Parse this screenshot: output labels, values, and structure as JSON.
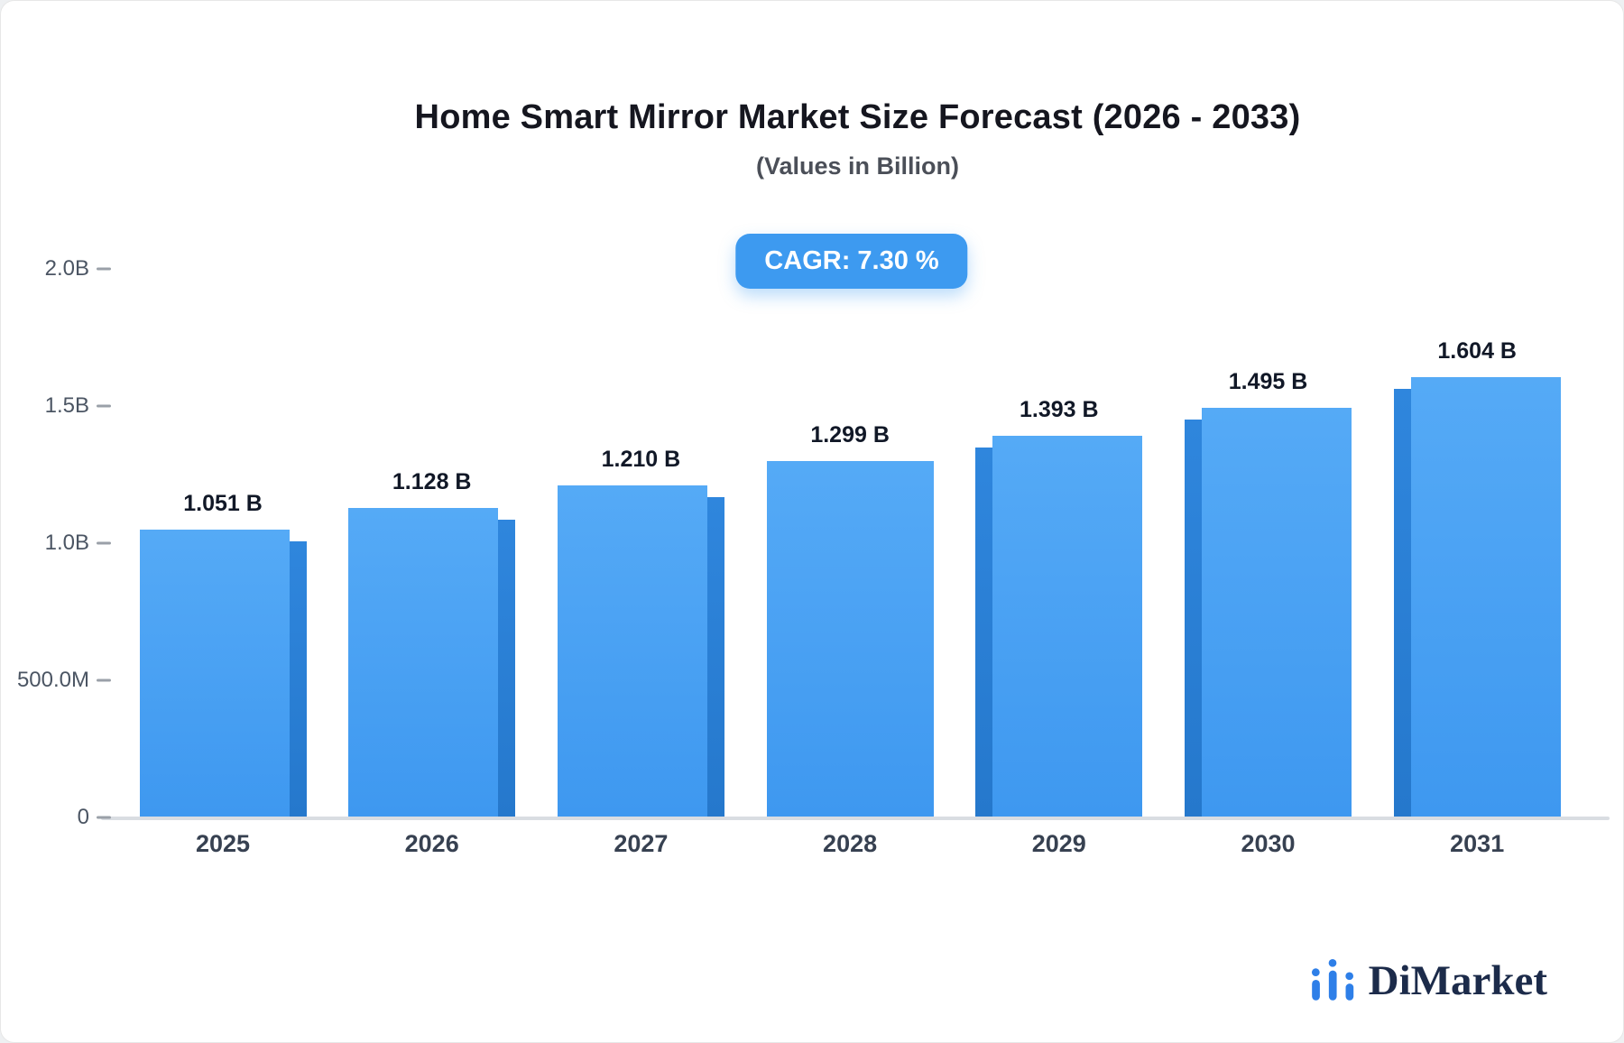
{
  "chart": {
    "title": "Home Smart Mirror Market Size Forecast (2026 - 2033)",
    "subtitle": "(Values in Billion)",
    "badge": "CAGR: 7.30 %"
  },
  "chart_data": {
    "type": "bar",
    "title": "Home Smart Mirror Market Size Forecast (2026 - 2033)",
    "subtitle": "(Values in Billion)",
    "xlabel": "",
    "ylabel": "",
    "categories": [
      "2025",
      "2026",
      "2027",
      "2028",
      "2029",
      "2030",
      "2031"
    ],
    "values": [
      1.051,
      1.128,
      1.21,
      1.299,
      1.393,
      1.495,
      1.604
    ],
    "value_labels": [
      "1.051 B",
      "1.128 B",
      "1.210 B",
      "1.299 B",
      "1.393 B",
      "1.495 B",
      "1.604 B"
    ],
    "unit": "B",
    "ylim": [
      0,
      2.0
    ],
    "yticks": [
      {
        "value": 2.0,
        "label": "2.0B"
      },
      {
        "value": 1.5,
        "label": "1.5B"
      },
      {
        "value": 1.0,
        "label": "1.0B"
      },
      {
        "value": 0.5,
        "label": "500.0M"
      },
      {
        "value": 0,
        "label": "0"
      }
    ],
    "grid": false,
    "legend": "none",
    "bar_color_top": "#55aaf6",
    "bar_color_bottom": "#3e98f0",
    "bar_side_color": "#2578cc",
    "badge_color": "#3d9af0"
  },
  "brand": {
    "name": "DiMarket"
  }
}
